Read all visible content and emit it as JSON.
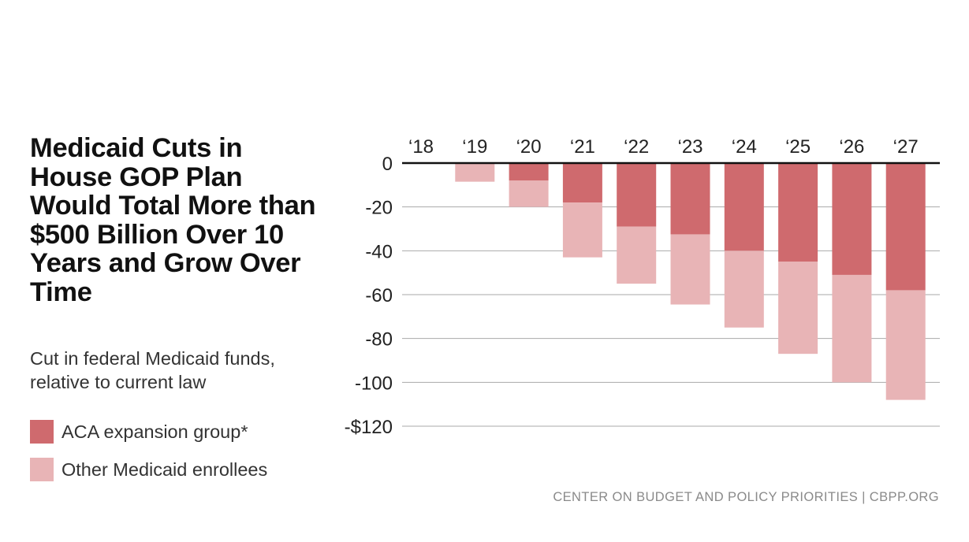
{
  "title": "Medicaid Cuts in House GOP Plan Would Total More than $500 Billion Over 10 Years and Grow Over Time",
  "subtitle": "Cut in federal Medicaid funds, relative to current law",
  "source": "CENTER ON BUDGET AND POLICY PRIORITIES | CBPP.ORG",
  "legend": [
    {
      "label": "ACA expansion group*",
      "color": "#cf6a6e"
    },
    {
      "label": "Other Medicaid enrollees",
      "color": "#e8b4b6"
    }
  ],
  "chart_data": {
    "type": "bar",
    "stacked": true,
    "categories": [
      "‘18",
      "‘19",
      "‘20",
      "‘21",
      "‘22",
      "‘23",
      "‘24",
      "‘25",
      "‘26",
      "‘27"
    ],
    "series": [
      {
        "name": "ACA expansion group*",
        "color": "#cf6a6e",
        "values": [
          0,
          0,
          -8,
          -18,
          -29,
          -32.5,
          -40,
          -45,
          -51,
          -58
        ]
      },
      {
        "name": "Other Medicaid enrollees",
        "color": "#e8b4b6",
        "values": [
          0,
          -8.5,
          -12,
          -25,
          -26,
          -32,
          -35,
          -42,
          -49,
          -50
        ]
      }
    ],
    "ylim": [
      -120,
      0
    ],
    "yticks": [
      0,
      -20,
      -40,
      -60,
      -80,
      -100,
      -120
    ],
    "ytick_labels": [
      "0",
      "-20",
      "-40",
      "-60",
      "-80",
      "-100",
      "-$120"
    ],
    "xlabel": "",
    "ylabel": "",
    "grid": true,
    "legend_position": "bottom-left"
  }
}
